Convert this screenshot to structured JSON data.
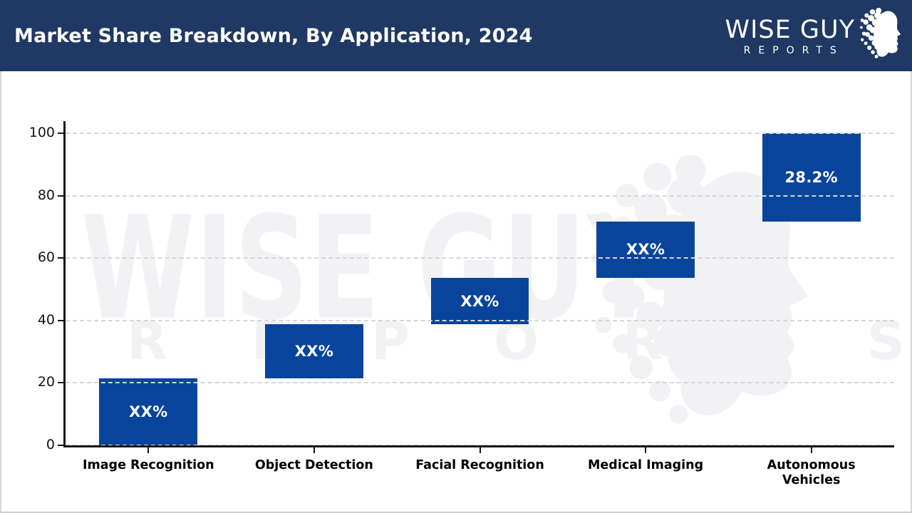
{
  "header": {
    "title": "Market Share Breakdown, By Application, 2024",
    "logo": {
      "line1": "WISE GUY",
      "line2": "REPORTS"
    }
  },
  "watermark": {
    "line1": "WISE GUY",
    "line2": "R E P O R T S"
  },
  "chart_data": {
    "type": "bar",
    "subtype": "waterfall",
    "title": "Market Share Breakdown, By Application, 2024",
    "categories": [
      "Image Recognition",
      "Object Detection",
      "Facial Recognition",
      "Medical Imaging",
      "Autonomous\nVehicles"
    ],
    "segments": [
      {
        "category": "Image Recognition",
        "start": 0,
        "end": 21.5,
        "value": 21.5,
        "label": "XX%"
      },
      {
        "category": "Object Detection",
        "start": 21.5,
        "end": 38.7,
        "value": 17.2,
        "label": "XX%"
      },
      {
        "category": "Facial Recognition",
        "start": 38.7,
        "end": 53.7,
        "value": 15.0,
        "label": "XX%"
      },
      {
        "category": "Medical Imaging",
        "start": 53.7,
        "end": 71.8,
        "value": 18.1,
        "label": "XX%"
      },
      {
        "category": "Autonomous Vehicles",
        "start": 71.8,
        "end": 100,
        "value": 28.2,
        "label": "28.2%"
      }
    ],
    "yticks": [
      0,
      20,
      40,
      60,
      80,
      100
    ],
    "ylim": [
      0,
      100
    ],
    "xlabel": "",
    "ylabel": "",
    "grid": "horizontal-dashed",
    "grid_above_bars": true,
    "legend": "none",
    "bar_color": "#08449c",
    "bar_label_color": "#ffffff",
    "header_color": "#1f3864",
    "watermark_color": "#f2f2f4"
  }
}
